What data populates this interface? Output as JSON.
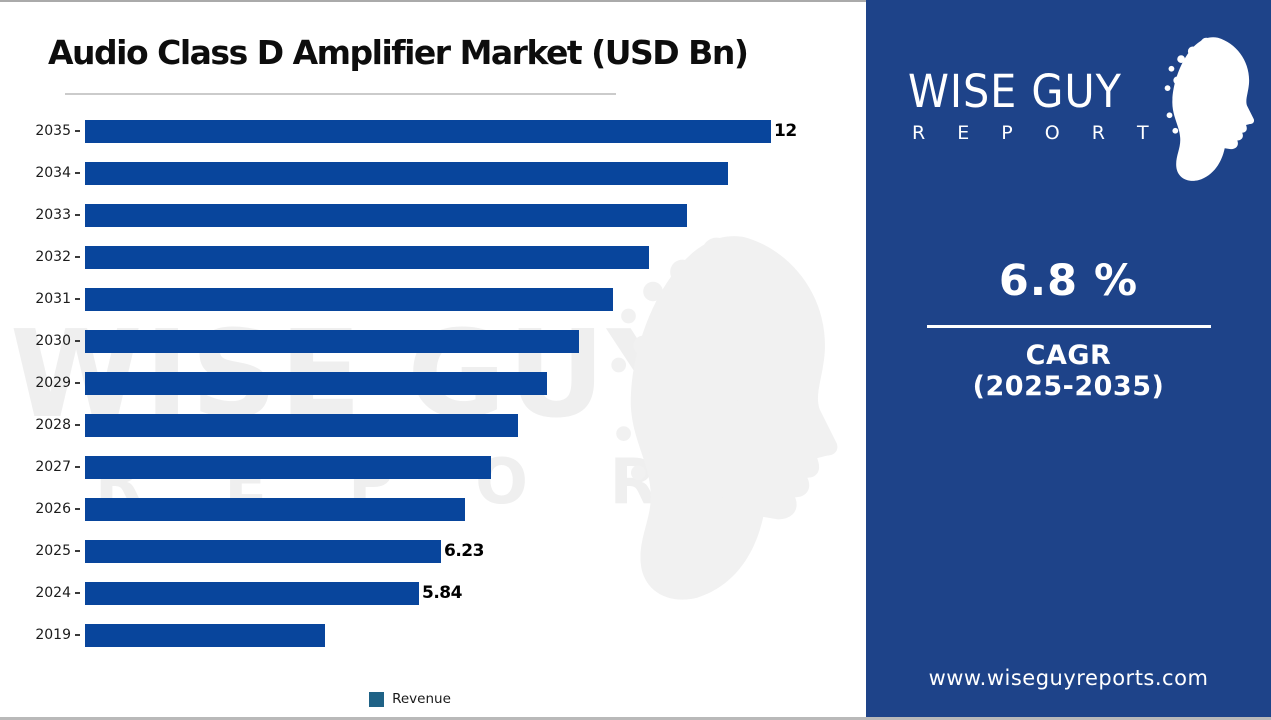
{
  "title": "Audio Class D Amplifier Market (USD Bn)",
  "chart_data": {
    "type": "bar",
    "orientation": "horizontal",
    "title": "Audio Class D Amplifier Market (USD Bn)",
    "series_name": "Revenue",
    "categories": [
      "2035",
      "2034",
      "2033",
      "2032",
      "2031",
      "2030",
      "2029",
      "2028",
      "2027",
      "2026",
      "2025",
      "2024",
      "2019"
    ],
    "values": [
      12,
      11.24,
      10.53,
      9.86,
      9.23,
      8.64,
      8.09,
      7.58,
      7.1,
      6.65,
      6.23,
      5.84,
      4.2
    ],
    "data_labels": [
      "12",
      "",
      "",
      "",
      "",
      "",
      "",
      "",
      "",
      "",
      "6.23",
      "5.84",
      ""
    ],
    "xlabel": "",
    "ylabel": "",
    "xlim": [
      0,
      12
    ],
    "grid": false,
    "legend_position": "bottom-center"
  },
  "legend": {
    "label": "Revenue"
  },
  "watermark": {
    "line1": "WISE GUY",
    "line2": "R E P O R T S"
  },
  "panel": {
    "brand": {
      "line1": "WISE GUY",
      "line2": "R E P O R T S"
    },
    "cagr_value": "6.8 %",
    "cagr_label_line1": "CAGR",
    "cagr_label_line2": "(2025-2035)",
    "website": "www.wiseguyreports.com"
  },
  "colors": {
    "bar": "#08459c",
    "legend_swatch": "#1f6286",
    "panel_background": "#1e4389",
    "watermark": "#efefef",
    "title_text": "#0d0d0d"
  }
}
